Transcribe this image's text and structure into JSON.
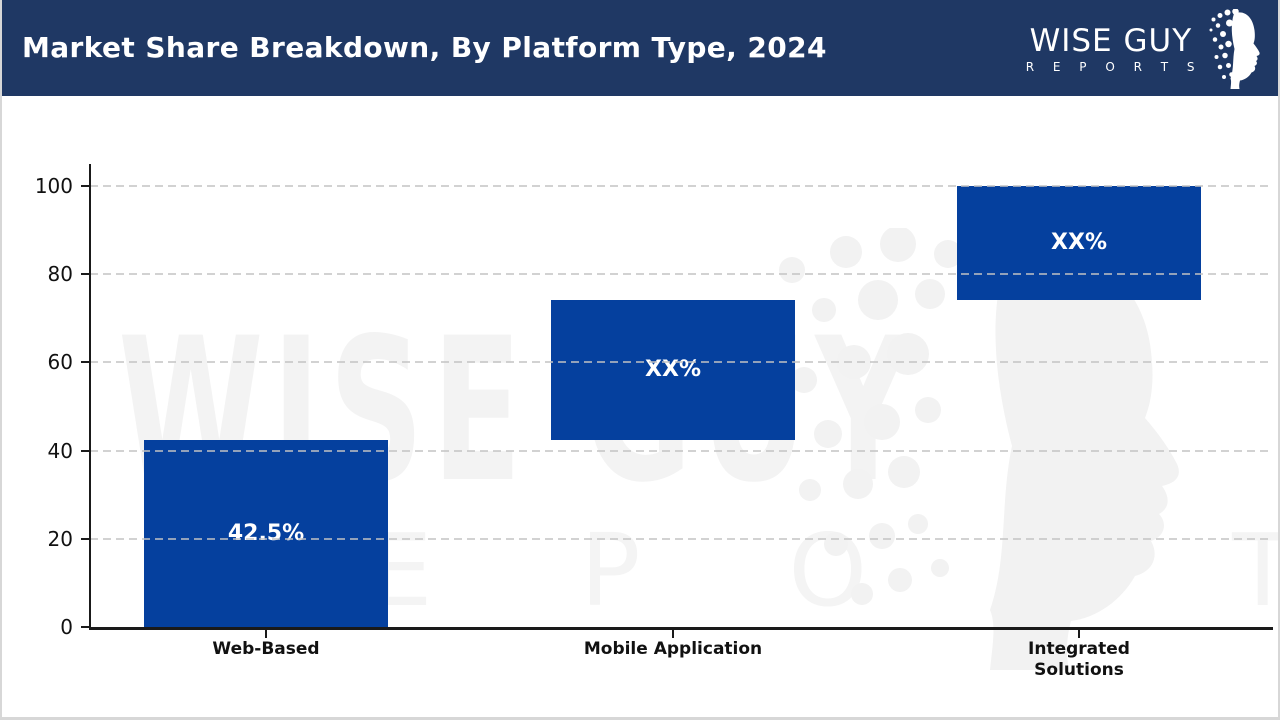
{
  "header": {
    "title": "Market Share Breakdown, By Platform Type, 2024",
    "logo": {
      "brand_line1": "WISE GUY",
      "brand_line2": "R E P O R T S",
      "face_icon": "dotted-head-profile-icon"
    }
  },
  "watermark": {
    "line1": "WISE GUY",
    "line2": "R E P O R T S",
    "face_icon": "dotted-head-profile-icon"
  },
  "colors": {
    "header_bg": "#1f3864",
    "bar": "#05409e",
    "bar_label": "#ffffff",
    "grid": "#d3d3d3",
    "axis": "#1a1a1a",
    "tick_label": "#111111",
    "watermark": "#f2f2f2",
    "page_border": "#d7d7d7"
  },
  "chart_data": {
    "type": "bar",
    "variant": "floating-waterfall",
    "title": "Market Share Breakdown, By Platform Type, 2024",
    "categories": [
      "Web-Based",
      "Mobile Application",
      "Integrated Solutions"
    ],
    "category_display": [
      "Web-Based",
      "Mobile Application",
      "Integrated\nSolutions"
    ],
    "segments": [
      {
        "category": "Web-Based",
        "start": 0,
        "end": 42.5,
        "label": "42.5%"
      },
      {
        "category": "Mobile Application",
        "start": 42.5,
        "end": 74.2,
        "label": "XX%"
      },
      {
        "category": "Integrated Solutions",
        "start": 74.2,
        "end": 100,
        "label": "XX%"
      }
    ],
    "xlabel": "",
    "ylabel": "",
    "ylim": [
      0,
      105
    ],
    "yticks": [
      0,
      20,
      40,
      60,
      80,
      100
    ],
    "grid": "horizontal-dashed",
    "legend": null
  }
}
